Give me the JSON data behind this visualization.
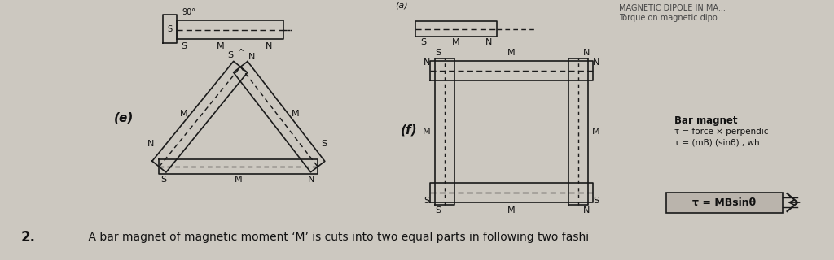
{
  "bg_color": "#ccc8c0",
  "label_e": "(e)",
  "label_f": "(f)",
  "label_2": "2.",
  "text_2": "    A bar magnet of magnetic moment ‘M’ is cuts into two equal parts in following two fashi",
  "line_color": "#1a1a1a",
  "right_text_1": "Bar magnet",
  "right_text_2": "τ = force × perpendic",
  "right_text_3": "τ = (mB) (sinθ) , wh",
  "right_text_4": "τ = MBsinθ"
}
